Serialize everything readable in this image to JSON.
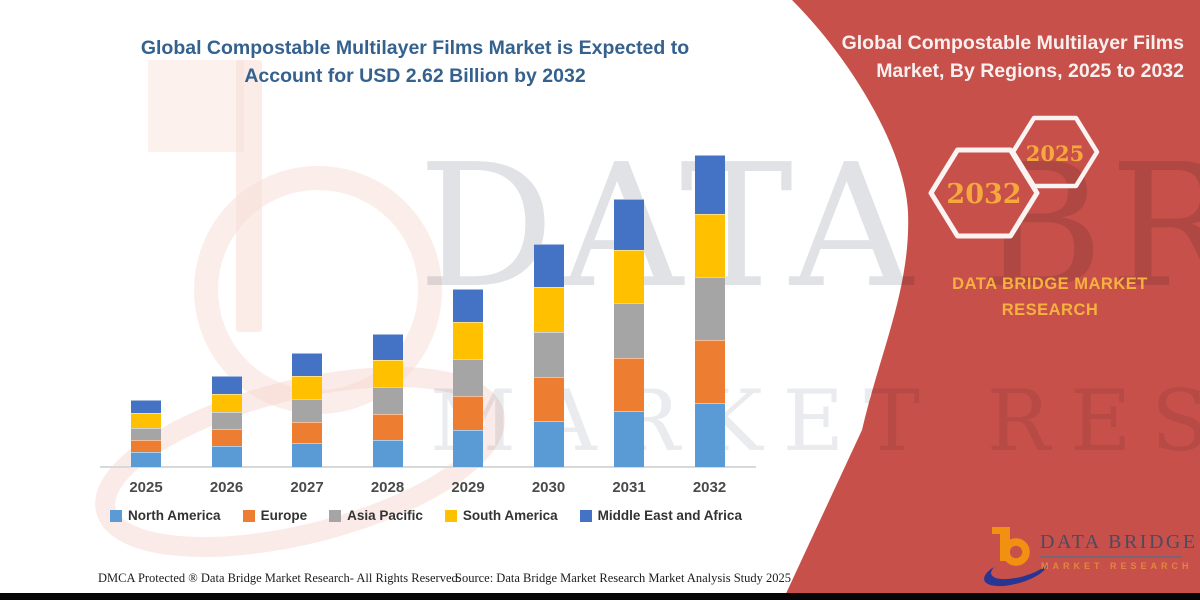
{
  "main_title": {
    "line1": "Global Compostable Multilayer Films Market is Expected to",
    "line2": "Account for USD 2.62 Billion by 2032",
    "color": "#35618E"
  },
  "side_panel": {
    "title_line1": "Global Compostable Multilayer Films",
    "title_line2": "Market, By Regions, 2025 to 2032",
    "panel_color": "#C8504A",
    "hexagons": [
      {
        "label": "2032"
      },
      {
        "label": "2025"
      }
    ],
    "brand_text": "DATA BRIDGE MARKET RESEARCH",
    "accent_text_color": "#F5B23E"
  },
  "watermark": {
    "line1": "DATA BRIDGE",
    "line2": "MARKET RESEARCH"
  },
  "chart_data": {
    "type": "bar",
    "stacked": true,
    "title": "Global Compostable Multilayer Films Market is Expected to Account for USD 2.62 Billion by 2032",
    "unit": "USD Billion",
    "categories": [
      "2025",
      "2026",
      "2027",
      "2028",
      "2029",
      "2030",
      "2031",
      "2032"
    ],
    "series": [
      {
        "name": "North America",
        "color": "#5B9BD5",
        "values": [
          0.12,
          0.17,
          0.19,
          0.22,
          0.3,
          0.38,
          0.46,
          0.53
        ]
      },
      {
        "name": "Europe",
        "color": "#ED7D31",
        "values": [
          0.1,
          0.14,
          0.18,
          0.22,
          0.29,
          0.37,
          0.45,
          0.53
        ]
      },
      {
        "name": "Asia Pacific",
        "color": "#A5A5A5",
        "values": [
          0.1,
          0.14,
          0.19,
          0.23,
          0.31,
          0.38,
          0.46,
          0.53
        ]
      },
      {
        "name": "South America",
        "color": "#FFC000",
        "values": [
          0.13,
          0.15,
          0.19,
          0.23,
          0.31,
          0.38,
          0.45,
          0.53
        ]
      },
      {
        "name": "Middle East and Africa",
        "color": "#4472C4",
        "values": [
          0.11,
          0.15,
          0.19,
          0.22,
          0.28,
          0.36,
          0.43,
          0.5
        ]
      }
    ],
    "totals": [
      0.56,
      0.75,
      0.94,
      1.12,
      1.49,
      1.87,
      2.25,
      2.62
    ],
    "ylim": [
      0,
      2.62
    ],
    "grid": false,
    "y_axis_visible": false,
    "legend_position": "bottom"
  },
  "footer": {
    "left": "DMCA Protected ® Data Bridge Market Research-  All Rights Reserved.",
    "source": "Source: Data Bridge Market Research  Market Analysis Study 2025"
  },
  "logo": {
    "name": "DATA BRIDGE",
    "sub": "MARKET RESEARCH"
  }
}
